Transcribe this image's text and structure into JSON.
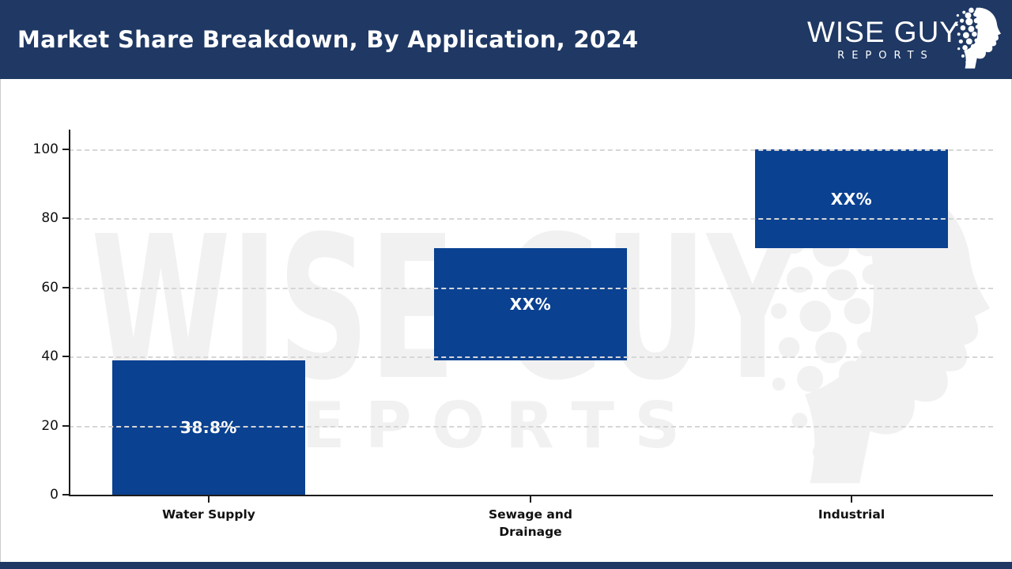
{
  "header": {
    "title": "Market Share Breakdown, By Application, 2024",
    "logo": {
      "name": "WISE GUY",
      "sub": "REPORTS"
    }
  },
  "watermark": {
    "line1": "WISE GUY",
    "line2": "REPORTS"
  },
  "chart_data": {
    "type": "bar",
    "variant": "floating_segment_breakdown",
    "title": "Market Share Breakdown, By Application, 2024",
    "categories": [
      "Water Supply",
      "Sewage and Drainage",
      "Industrial"
    ],
    "category_display": [
      "Water Supply",
      "Sewage and\nDrainage",
      "Industrial"
    ],
    "segments": [
      {
        "category": "Water Supply",
        "start": 0,
        "end": 38.8,
        "value": 38.8,
        "label": "38.8%"
      },
      {
        "category": "Sewage and Drainage",
        "start": 38.8,
        "end": 71.3,
        "value": 32.5,
        "label": "XX%"
      },
      {
        "category": "Industrial",
        "start": 71.3,
        "end": 100,
        "value": 28.7,
        "label": "XX%"
      }
    ],
    "ylim": [
      0,
      100
    ],
    "yticks": [
      0,
      20,
      40,
      60,
      80,
      100
    ],
    "grid": {
      "horizontal": true,
      "style": "dashed"
    },
    "legend": "none",
    "bar_color": "#0a4191",
    "bar_label_color": "#ffffff"
  },
  "colors": {
    "header_bg": "#1f3864",
    "footer_bg": "#1f3864",
    "bar": "#0a4191",
    "watermark": "#f1f1f1",
    "axis": "#1c1c1c"
  }
}
